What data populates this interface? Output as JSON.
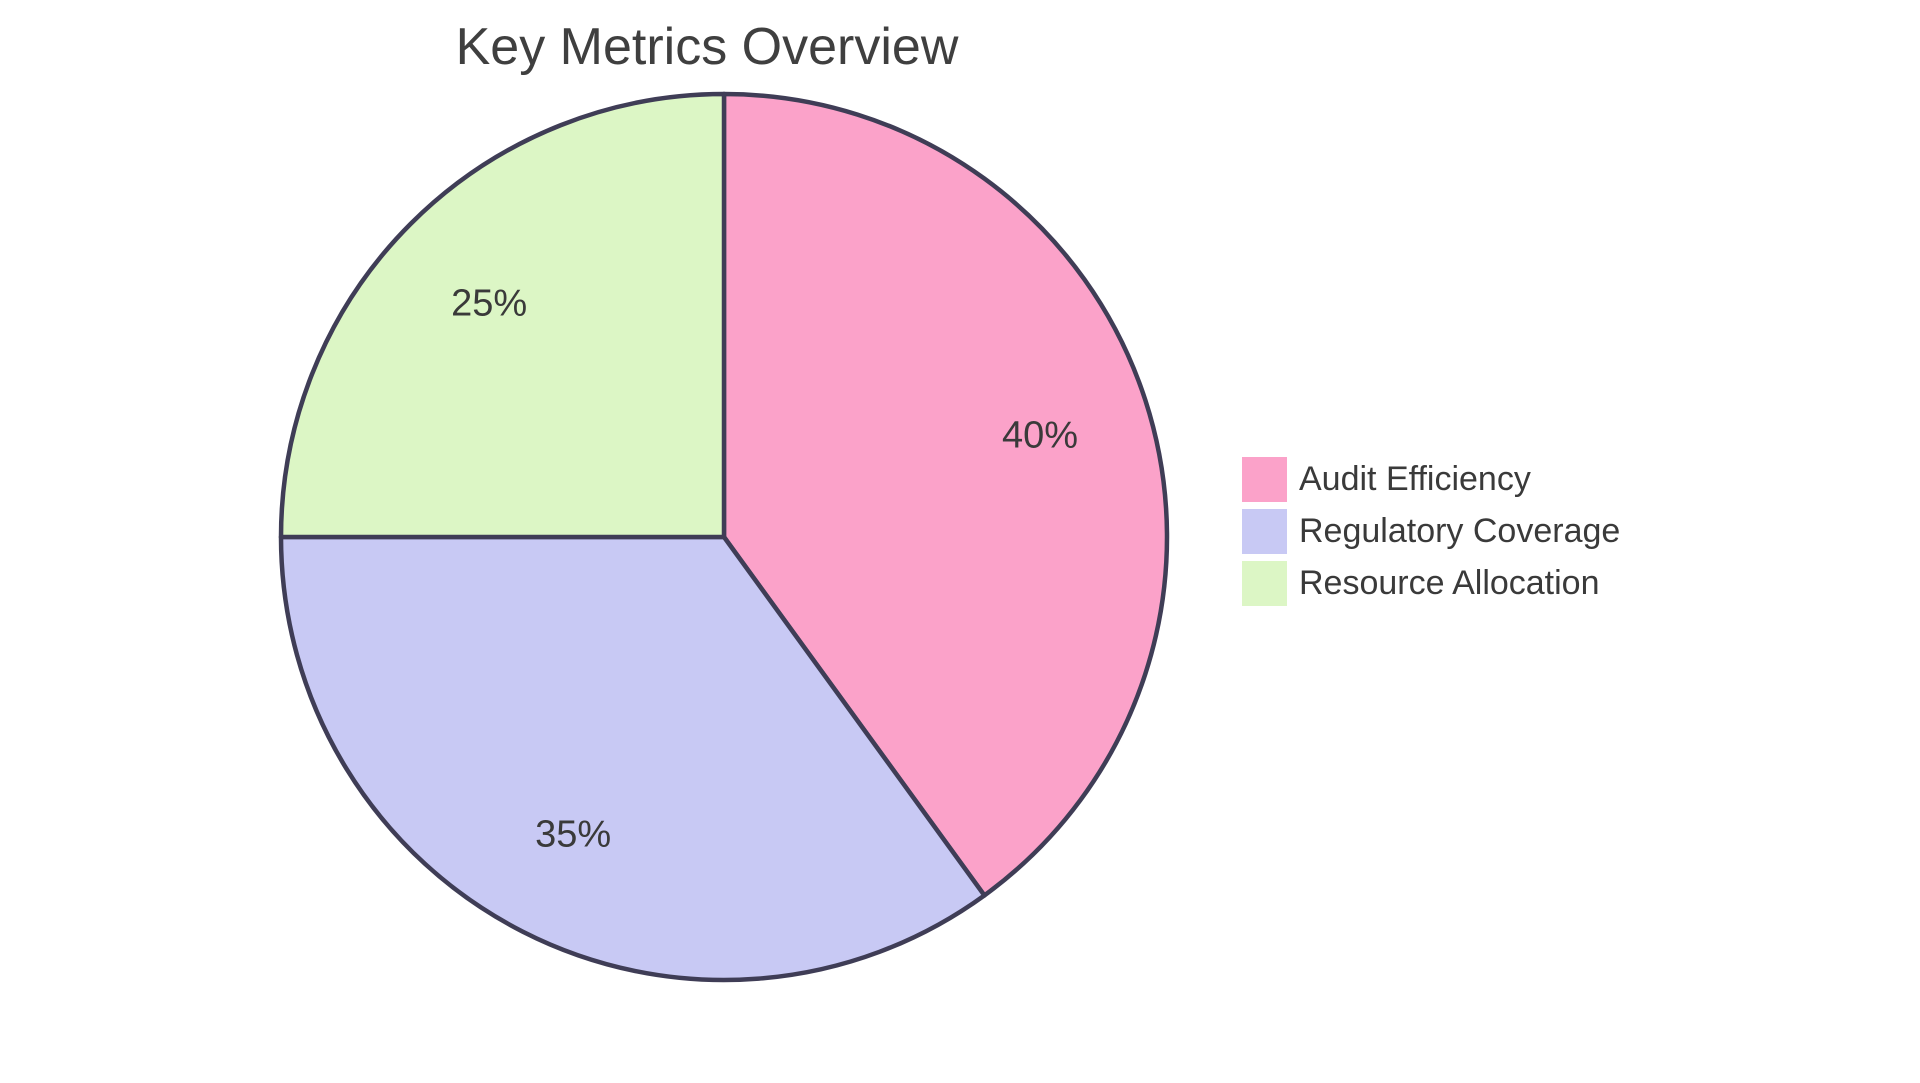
{
  "chart_data": {
    "type": "pie",
    "title": "Key Metrics Overview",
    "categories": [
      "Audit Efficiency",
      "Regulatory Coverage",
      "Resource Allocation"
    ],
    "values": [
      40,
      35,
      25
    ],
    "slice_labels": [
      "40%",
      "35%",
      "25%"
    ],
    "colors": [
      "#FBA2C9",
      "#C8C9F4",
      "#DCF6C5"
    ],
    "unit": "%",
    "start_angle_deg": 0,
    "direction": "clockwise",
    "legend_position": "right-middle",
    "stroke_color": "#3F3D56",
    "title_color": "#3F3F3F",
    "label_color": "#3A3A3A",
    "legend_text_color": "#3A3A3A",
    "background": "#FFFFFF"
  }
}
